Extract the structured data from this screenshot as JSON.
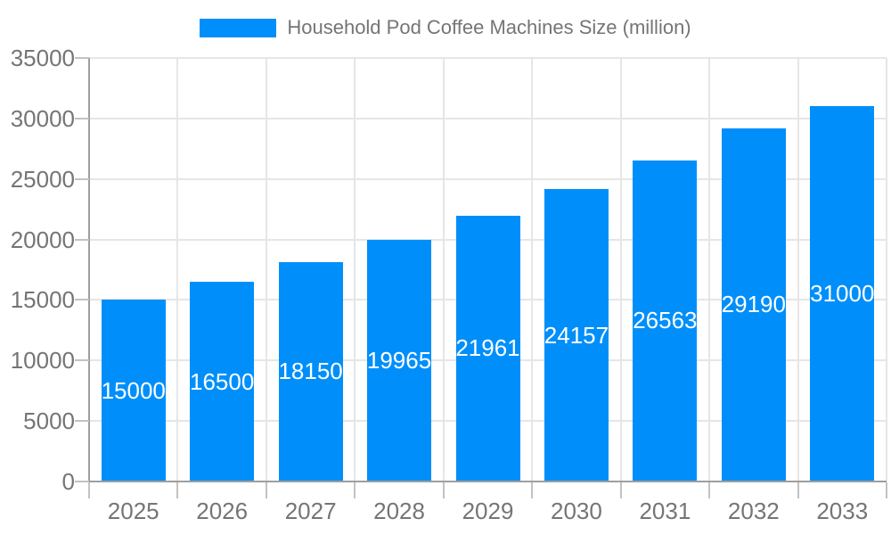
{
  "legend": {
    "label": "Household Pod Coffee Machines Size (million)",
    "swatch_color": "#008FFA"
  },
  "chart_data": {
    "type": "bar",
    "title": "Household Pod Coffee Machines Size (million)",
    "series_name": "Household Pod Coffee Machines Size (million)",
    "categories": [
      "2025",
      "2026",
      "2027",
      "2028",
      "2029",
      "2030",
      "2031",
      "2032",
      "2033"
    ],
    "values": [
      15000,
      16500,
      18150,
      19965,
      21961,
      24157,
      26563,
      29190,
      31000
    ],
    "bar_value_labels": [
      "15000",
      "16500",
      "18150",
      "19965",
      "21961",
      "24157",
      "26563",
      "29190",
      "31000"
    ],
    "xlabel": "",
    "ylabel": "",
    "ylim": [
      0,
      35000
    ],
    "yticks": [
      0,
      5000,
      10000,
      15000,
      20000,
      25000,
      30000,
      35000
    ],
    "ytick_labels": [
      "0",
      "5000",
      "10000",
      "15000",
      "20000",
      "25000",
      "30000",
      "35000"
    ],
    "grid": true,
    "legend_position": "top-center",
    "colors": {
      "bar": "#008FFA",
      "bar_label_text": "#ffffff",
      "axis_text": "#757575",
      "grid_line": "#e6e6e6",
      "axis_line": "#9e9e9e",
      "tick_mark": "#c2c2c2",
      "background": "#ffffff"
    }
  }
}
